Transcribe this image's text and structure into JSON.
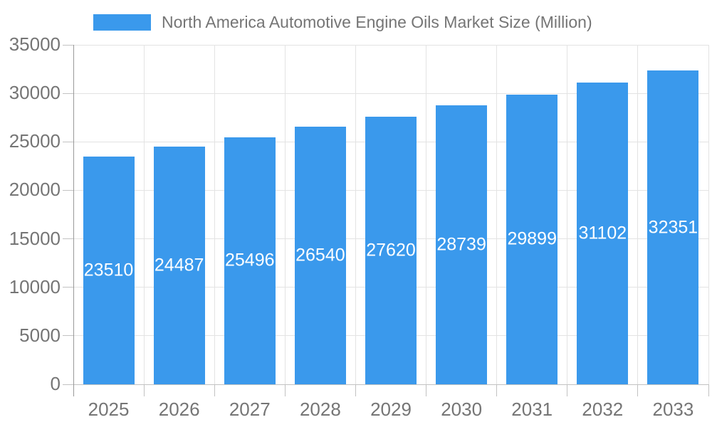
{
  "chart_data": {
    "type": "bar",
    "title": "North America Automotive Engine Oils Market Size (Million)",
    "categories": [
      "2025",
      "2026",
      "2027",
      "2028",
      "2029",
      "2030",
      "2031",
      "2032",
      "2033"
    ],
    "values": [
      23510,
      24487,
      25496,
      26540,
      27620,
      28739,
      29899,
      31102,
      32351
    ],
    "series": [
      {
        "name": "North America Automotive Engine Oils Market Size (Million)",
        "values": [
          23510,
          24487,
          25496,
          26540,
          27620,
          28739,
          29899,
          31102,
          32351
        ]
      }
    ],
    "legend": {
      "label": "North America Automotive Engine Oils Market Size (Million)",
      "position": "top"
    },
    "xlabel": "",
    "ylabel": "",
    "ylim": [
      0,
      35000
    ],
    "yticks": [
      0,
      5000,
      10000,
      15000,
      20000,
      25000,
      30000,
      35000
    ],
    "grid": true,
    "bar_labels_visible": true,
    "colors": {
      "bar": "#3A99EC",
      "bar_label_text": "#ffffff",
      "axis_text": "#757575",
      "legend_text": "#757575",
      "gridline": "#e3e3e3",
      "axis_line": "#999999",
      "tick_line": "#c2c2c2"
    }
  }
}
